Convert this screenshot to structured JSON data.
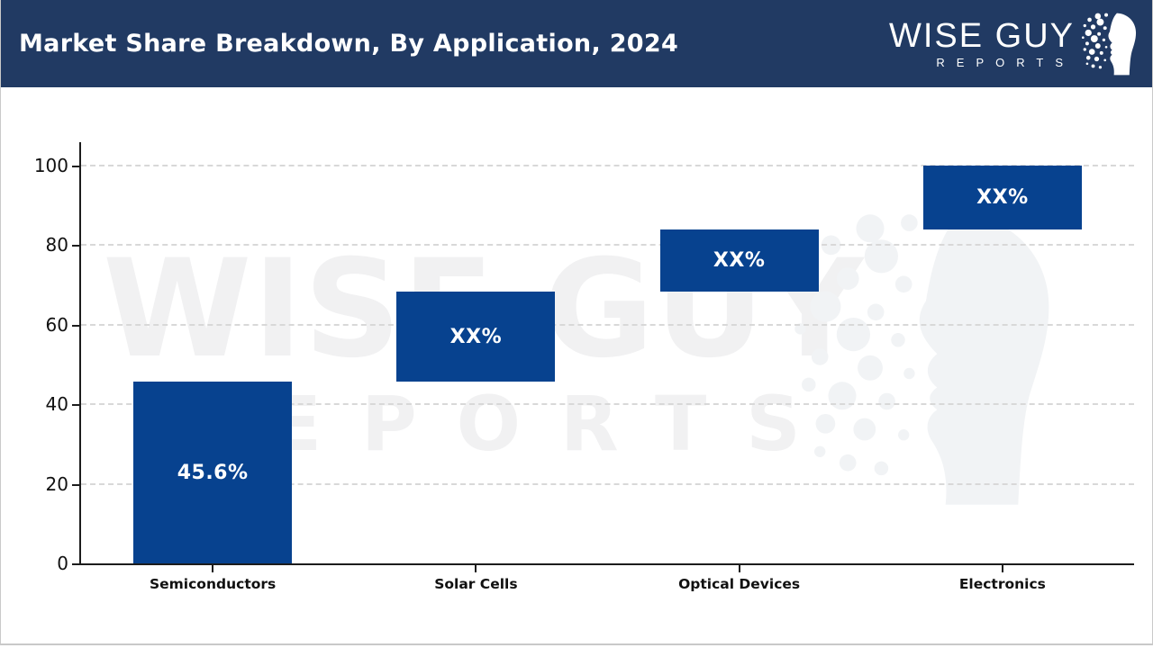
{
  "header": {
    "title": "Market Share Breakdown, By Application, 2024"
  },
  "logo": {
    "line1": "WISE GUY",
    "line2": "REPORTS"
  },
  "watermark": {
    "line1": "WISE GUY",
    "line2": "REPORTS"
  },
  "colors": {
    "header_bg": "#213a63",
    "bar": "#07428f",
    "bar_label": "#ffffff",
    "gridline": "#d8d8d8",
    "axis": "#1c1c1c",
    "watermark": "#f1f1f2"
  },
  "chart_data": {
    "type": "bar",
    "subtype": "waterfall",
    "title": "Market Share Breakdown, By Application, 2024",
    "categories": [
      "Semiconductors",
      "Solar Cells",
      "Optical Devices",
      "Electronics"
    ],
    "series": [
      {
        "name": "Market Share",
        "segments": [
          {
            "category": "Semiconductors",
            "start": 0,
            "end": 45.6,
            "label": "45.6%"
          },
          {
            "category": "Solar Cells",
            "start": 45.6,
            "end": 68.3,
            "label": "XX%"
          },
          {
            "category": "Optical Devices",
            "start": 68.3,
            "end": 83.9,
            "label": "XX%"
          },
          {
            "category": "Electronics",
            "start": 83.9,
            "end": 100,
            "label": "XX%"
          }
        ]
      }
    ],
    "xlabel": "",
    "ylabel": "",
    "ylim": [
      0,
      100
    ],
    "yticks": [
      0,
      20,
      40,
      60,
      80,
      100
    ],
    "grid": "horizontal-dashed",
    "legend": "none"
  }
}
